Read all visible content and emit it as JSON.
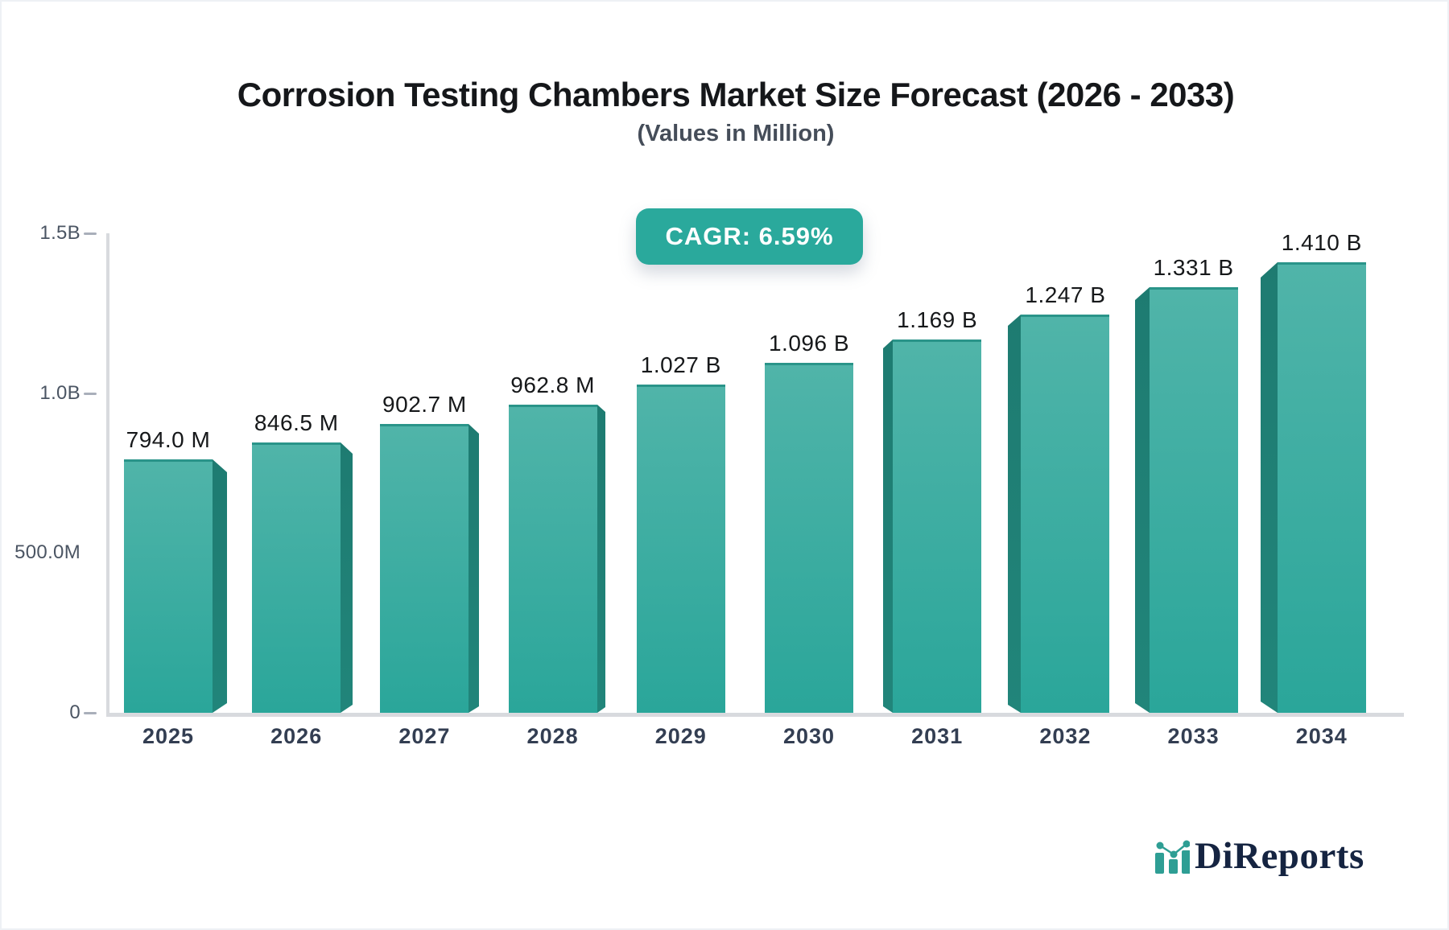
{
  "title": "Corrosion Testing Chambers Market Size Forecast (2026 - 2033)",
  "subtitle": "(Values in Million)",
  "badge": {
    "label": "CAGR: 6.59%"
  },
  "logo": {
    "text": "DiReports"
  },
  "colors": {
    "accent_teal": "#2aa99c",
    "bar_face_top": "#50b4a9",
    "bar_face_bottom": "#2aa69a",
    "bar_top_edge": "#2a9489",
    "bar_side_dark": "#1e7b71",
    "axis_gray": "#d8dade",
    "tick_gray": "#a9afba",
    "label_dark": "#16181a",
    "logo_navy": "#152441"
  },
  "chart_data": {
    "type": "bar",
    "title": "Corrosion Testing Chambers Market Size Forecast (2026 - 2033)",
    "subtitle": "(Values in Million)",
    "cagr_label": "CAGR: 6.59%",
    "categories": [
      "2025",
      "2026",
      "2027",
      "2028",
      "2029",
      "2030",
      "2031",
      "2032",
      "2033",
      "2034"
    ],
    "values_millions": [
      794.0,
      846.5,
      902.7,
      962.8,
      1027,
      1096,
      1169,
      1247,
      1331,
      1410
    ],
    "value_labels": [
      "794.0 M",
      "846.5 M",
      "902.7 M",
      "962.8 M",
      "1.027 B",
      "1.096 B",
      "1.169 B",
      "1.247 B",
      "1.331 B",
      "1.410 B"
    ],
    "xlabel": "",
    "ylabel": "",
    "ylim": [
      0,
      1500
    ],
    "yticks": [
      {
        "label": "1.5B",
        "value_millions": 1500,
        "has_dash": true
      },
      {
        "label": "1.0B",
        "value_millions": 1000,
        "has_dash": true
      },
      {
        "label": "500.0M",
        "value_millions": 500,
        "has_dash": false
      },
      {
        "label": "0",
        "value_millions": 0,
        "has_dash": true
      }
    ],
    "grid": false,
    "legend": false,
    "style": "3d-perspective-bars"
  }
}
